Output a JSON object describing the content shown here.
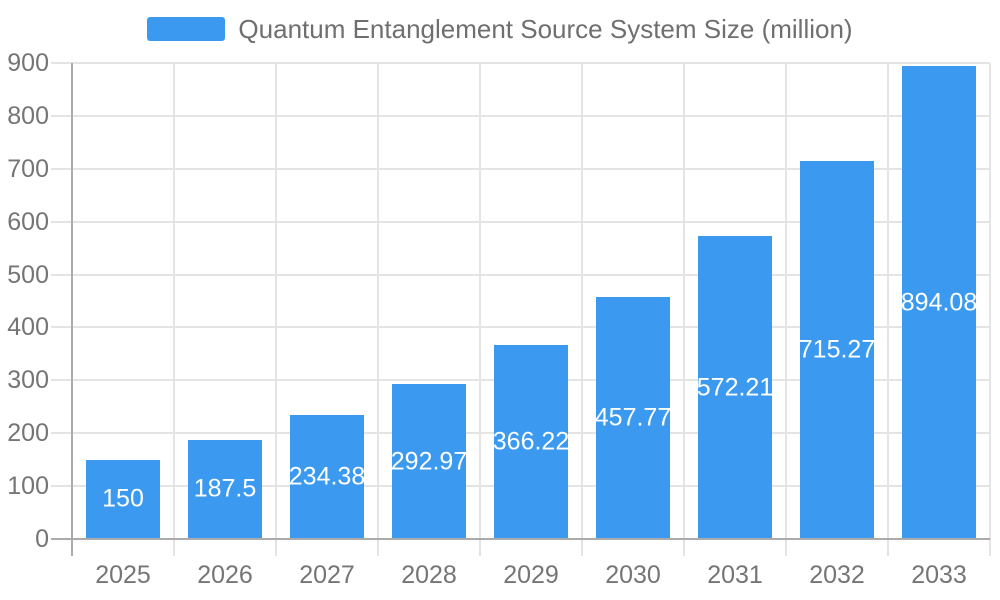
{
  "chart_data": {
    "type": "bar",
    "title": "Quantum Entanglement Source System Size (million)",
    "categories": [
      "2025",
      "2026",
      "2027",
      "2028",
      "2029",
      "2030",
      "2031",
      "2032",
      "2033"
    ],
    "values": [
      150,
      187.5,
      234.38,
      292.97,
      366.22,
      457.77,
      572.21,
      715.27,
      894.08
    ],
    "value_labels": [
      "150",
      "187.5",
      "234.38",
      "292.97",
      "366.22",
      "457.77",
      "572.21",
      "715.27",
      "894.08"
    ],
    "xlabel": "",
    "ylabel": "",
    "ylim": [
      0,
      900
    ],
    "ytick_step": 100,
    "ytick_labels": [
      "0",
      "100",
      "200",
      "300",
      "400",
      "500",
      "600",
      "700",
      "800",
      "900"
    ],
    "grid": true,
    "legend_position": "top",
    "colors": {
      "bar": "#3B9AEF",
      "axis": "#ABABAB",
      "gridline": "#E4E4E4",
      "tick_label_text": "#757575",
      "legend_text": "#6F6F6F",
      "bar_label_text": "#FFFFFF",
      "background": "#FFFFFF"
    }
  }
}
